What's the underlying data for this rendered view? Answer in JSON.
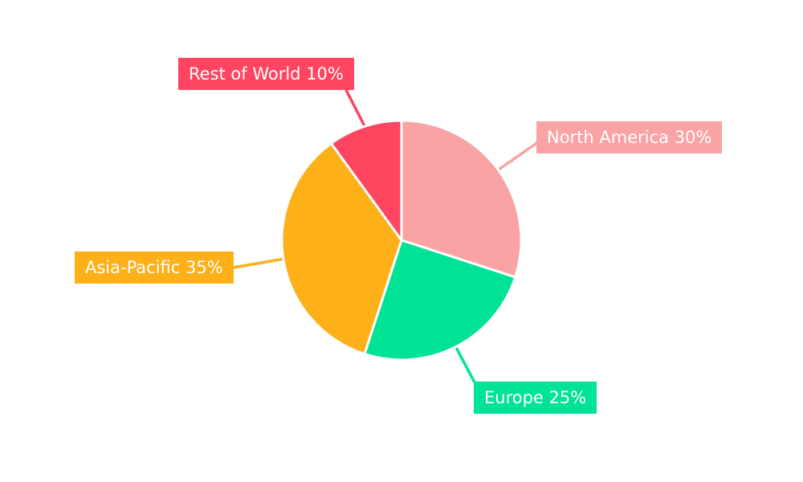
{
  "chart_data": {
    "type": "pie",
    "title": "",
    "legend_position": "none",
    "background": "#FFFFFF",
    "label_text_color": "#FFFFFF",
    "start_angle_deg": 0,
    "direction": "clockwise",
    "total": 100,
    "categories": [
      "North America",
      "Europe",
      "Asia-Pacific",
      "Rest of World"
    ],
    "values": [
      30,
      25,
      35,
      10
    ],
    "slices": [
      {
        "label": "North America",
        "value": 30,
        "display": "North America 30%",
        "color": "#F9A3A4"
      },
      {
        "label": "Europe",
        "value": 25,
        "display": "Europe 25%",
        "color": "#00E396"
      },
      {
        "label": "Asia-Pacific",
        "value": 35,
        "display": "Asia-Pacific 35%",
        "color": "#FEB019"
      },
      {
        "label": "Rest of World",
        "value": 10,
        "display": "Rest of World 10%",
        "color": "#FF4560"
      }
    ]
  }
}
